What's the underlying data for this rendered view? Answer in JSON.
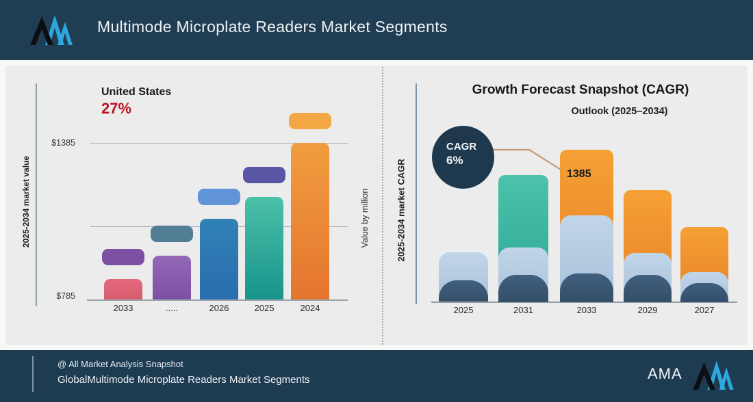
{
  "header": {
    "title": "Multimode Microplate Readers Market Segments",
    "logo": "ama-mountain-logo"
  },
  "footer": {
    "line1": "@ All Market Analysis Snapshot",
    "line2": "GlobalMultimode Microplate Readers Market Segments",
    "brand": "AMA",
    "logo": "ama-mountain-logo"
  },
  "colors": {
    "header_bg": "#1f3d53",
    "footer_bg": "#1d3b51",
    "panel_bg": "#ebeceb",
    "accent_red": "#bb1420",
    "badge_navy": "#1e394e",
    "connector_tan": "#c49a73",
    "logo_black": "#0c0e13",
    "logo_blue": "#2ea7e0"
  },
  "chart_data": [
    {
      "id": "us_market",
      "type": "bar",
      "title": "United States",
      "highlight": "27%",
      "ylabel_left": "2025-2034 market value",
      "ylabel_right": "Value by million",
      "yticks": [
        "$1385",
        "$785"
      ],
      "ylim": [
        785,
        1385
      ],
      "grid": true,
      "categories": [
        "2033",
        ".....",
        "2026",
        "2025",
        "2024"
      ],
      "values": [
        865,
        955,
        1095,
        1180,
        1385
      ],
      "bar_gradients": [
        [
          "#e46a7d",
          "#d75b6e"
        ],
        [
          "#9469b8",
          "#7b50a3"
        ],
        [
          "#3181b7",
          "#2a6dad"
        ],
        [
          "#4cc1a9",
          "#17938b"
        ],
        [
          "#f19d40",
          "#e4752e"
        ]
      ],
      "cap_colors": [
        "#7d50a3",
        "#527e95",
        "#6094d6",
        "#5956a6",
        "#f2a644"
      ]
    },
    {
      "id": "growth_forecast",
      "type": "stacked-bar",
      "title": "Growth Forecast Snapshot (CAGR)",
      "subtitle": "Outlook (2025–2034)",
      "ylabel_left": "2025-2034 market CAGR",
      "badge": {
        "label": "CAGR",
        "value": "6%"
      },
      "annotation": {
        "text": "1385",
        "target_category": "2033"
      },
      "categories": [
        "2025",
        "2031",
        "2033",
        "2029",
        "2027"
      ],
      "unit_note": "segment heights estimated in screen px (no numeric axis shown)",
      "bars": [
        {
          "category": "2025",
          "segments": [
            {
              "color": "base",
              "h": 32
            },
            {
              "color": "mid",
              "h": 41
            }
          ]
        },
        {
          "category": "2031",
          "segments": [
            {
              "color": "base",
              "h": 40
            },
            {
              "color": "mid",
              "h": 40
            },
            {
              "color": "teal",
              "h": 106
            }
          ]
        },
        {
          "category": "2033",
          "segments": [
            {
              "color": "base",
              "h": 42
            },
            {
              "color": "mid",
              "h": 85
            },
            {
              "color": "orange",
              "h": 96
            }
          ]
        },
        {
          "category": "2029",
          "segments": [
            {
              "color": "base",
              "h": 40
            },
            {
              "color": "mid",
              "h": 32
            },
            {
              "color": "orange",
              "h": 92
            }
          ]
        },
        {
          "category": "2027",
          "segments": [
            {
              "color": "base",
              "h": 28
            },
            {
              "color": "mid",
              "h": 16
            },
            {
              "color": "orange",
              "h": 66
            }
          ]
        }
      ],
      "segment_palette": {
        "base": [
          "#40607e",
          "#334e69"
        ],
        "mid": [
          "#c1d5e8",
          "#a8c2d9"
        ],
        "teal": [
          "#4cc2ab",
          "#2aa794"
        ],
        "orange": [
          "#f5a034",
          "#e88127"
        ]
      }
    }
  ]
}
